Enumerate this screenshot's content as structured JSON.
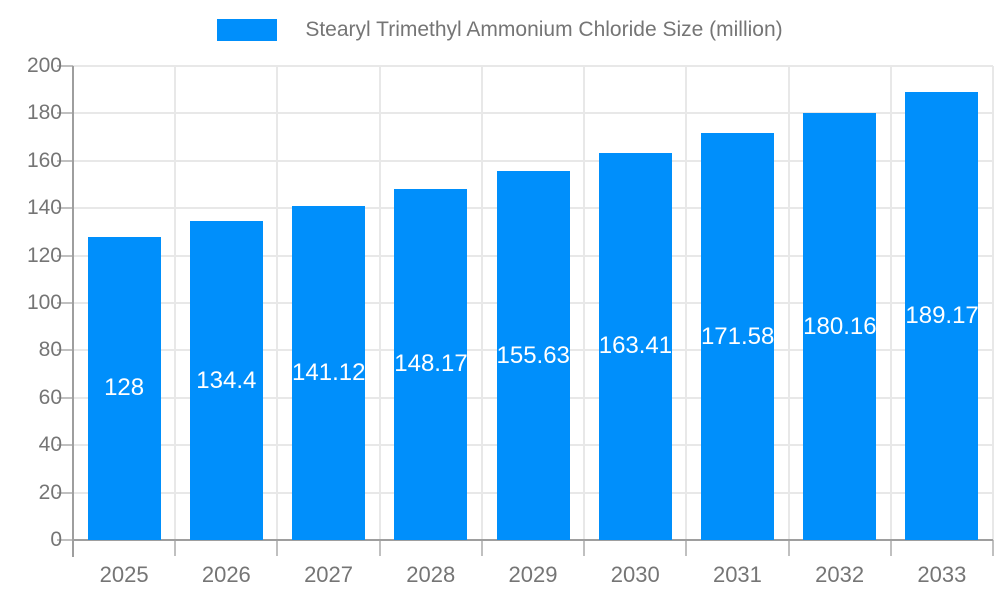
{
  "chart": {
    "legend": {
      "label": "Stearyl Trimethyl Ammonium Chloride Size (million)"
    },
    "colors": {
      "bar": "#008FFB",
      "bar_label_text": "#ffffff",
      "axis_text": "#757575",
      "axis_line": "#9e9e9e",
      "tick_line": "#c0c0c0",
      "gridline": "#e8e8e8",
      "background": "#ffffff"
    }
  },
  "chart_data": {
    "type": "bar",
    "title": "Stearyl Trimethyl Ammonium Chloride Size (million)",
    "categories": [
      "2025",
      "2026",
      "2027",
      "2028",
      "2029",
      "2030",
      "2031",
      "2032",
      "2033"
    ],
    "values": [
      128,
      134.4,
      141.12,
      148.17,
      155.63,
      163.41,
      171.58,
      180.16,
      189.17
    ],
    "value_labels": [
      "128",
      "134.4",
      "141.12",
      "148.17",
      "155.63",
      "163.41",
      "171.58",
      "180.16",
      "189.17"
    ],
    "xlabel": "",
    "ylabel": "",
    "ylim": [
      0,
      200
    ],
    "ytick_step": 20,
    "yticks": [
      0,
      20,
      40,
      60,
      80,
      100,
      120,
      140,
      160,
      180,
      200
    ],
    "grid": true,
    "legend_position": "top",
    "value_label_position": "inside-center"
  }
}
